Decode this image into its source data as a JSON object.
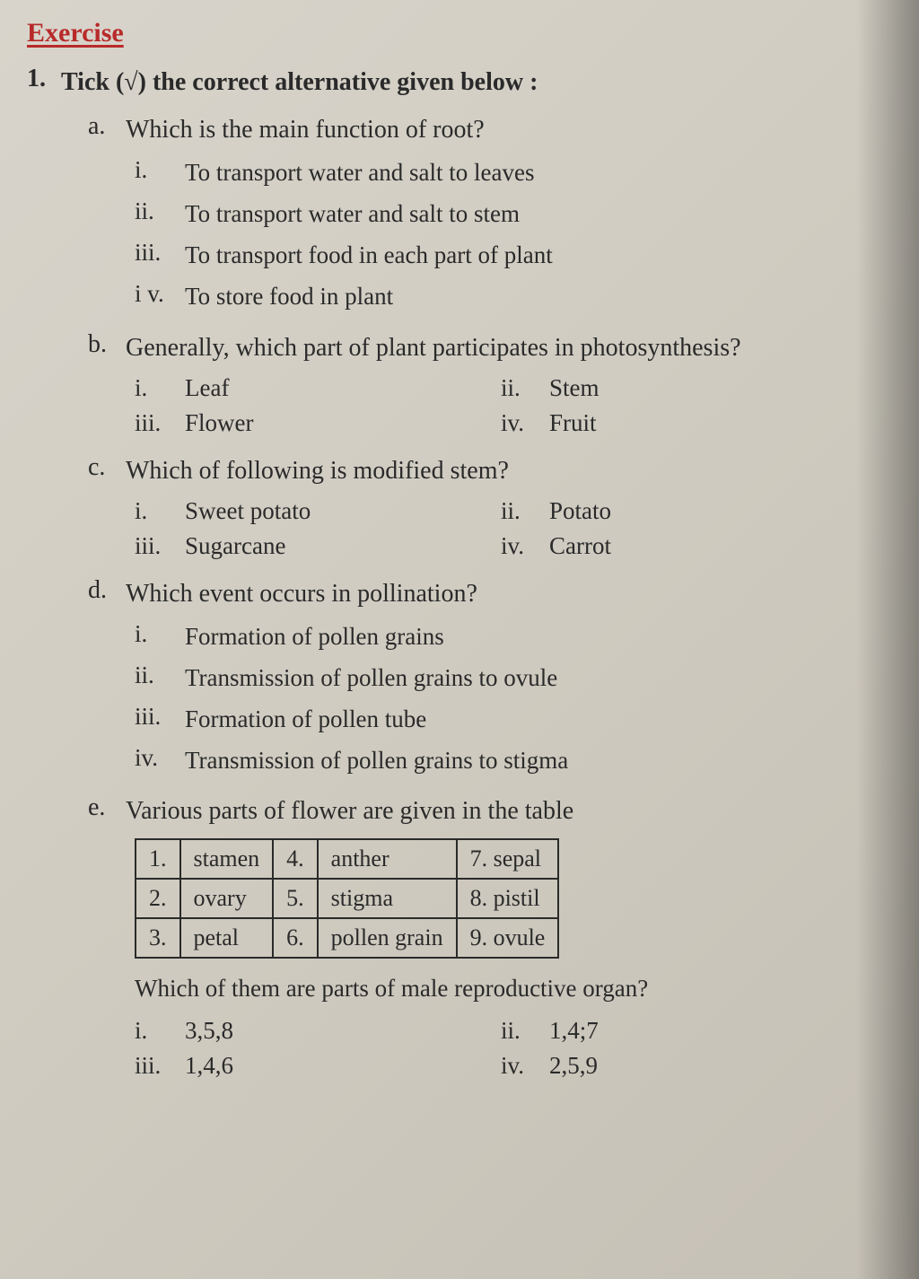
{
  "heading": "Exercise",
  "q1": {
    "num": "1.",
    "text": "Tick (√) the correct alternative given below :",
    "a": {
      "letter": "a.",
      "text": "Which is the main function of root?",
      "opts": {
        "n1": "i.",
        "t1": "To transport water and salt to leaves",
        "n2": "ii.",
        "t2": "To transport water and salt to stem",
        "n3": "iii.",
        "t3": "To transport food in each part of plant",
        "n4": "i v.",
        "t4": "To store food in plant"
      }
    },
    "b": {
      "letter": "b.",
      "text": "Generally, which part of plant participates in photosynthesis?",
      "opts": {
        "n1": "i.",
        "t1": "Leaf",
        "n2": "ii.",
        "t2": "Stem",
        "n3": "iii.",
        "t3": "Flower",
        "n4": "iv.",
        "t4": "Fruit"
      }
    },
    "c": {
      "letter": "c.",
      "text": "Which of following is modified stem?",
      "opts": {
        "n1": "i.",
        "t1": "Sweet potato",
        "n2": "ii.",
        "t2": "Potato",
        "n3": "iii.",
        "t3": "Sugarcane",
        "n4": "iv.",
        "t4": "Carrot"
      }
    },
    "d": {
      "letter": "d.",
      "text": "Which event occurs in pollination?",
      "opts": {
        "n1": "i.",
        "t1": "Formation of pollen grains",
        "n2": "ii.",
        "t2": "Transmission of pollen grains to ovule",
        "n3": "iii.",
        "t3": "Formation of pollen tube",
        "n4": "iv.",
        "t4": "Transmission of pollen grains to stigma"
      }
    },
    "e": {
      "letter": "e.",
      "text": "Various parts of flower are given in the table",
      "table": {
        "r1": {
          "c1n": "1.",
          "c1": "stamen",
          "c2n": "4.",
          "c2": "anther",
          "c3": "7. sepal"
        },
        "r2": {
          "c1n": "2.",
          "c1": "ovary",
          "c2n": "5.",
          "c2": "stigma",
          "c3": "8. pistil"
        },
        "r3": {
          "c1n": "3.",
          "c1": "petal",
          "c2n": "6.",
          "c2": "pollen grain",
          "c3": "9. ovule"
        }
      },
      "after": "Which of them are parts of male reproductive organ?",
      "opts": {
        "n1": "i.",
        "t1": "3,5,8",
        "n2": "ii.",
        "t2": "1,4;7",
        "n3": "iii.",
        "t3": "1,4,6",
        "n4": "iv.",
        "t4": "2,5,9"
      }
    }
  }
}
